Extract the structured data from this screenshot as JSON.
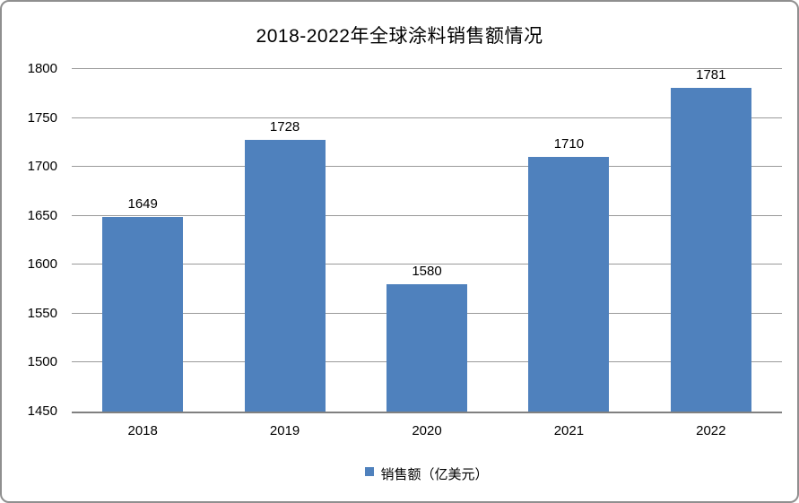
{
  "chart_data": {
    "type": "bar",
    "title": "2018-2022年全球涂料销售额情况",
    "categories": [
      "2018",
      "2019",
      "2020",
      "2021",
      "2022"
    ],
    "series": [
      {
        "name": "销售额（亿美元）",
        "color": "#4F81BD",
        "values": [
          1649,
          1728,
          1580,
          1710,
          1781
        ]
      }
    ],
    "data_labels": [
      1649,
      1728,
      1580,
      1710,
      1781
    ],
    "ylim": [
      1450,
      1800
    ],
    "yticks": [
      1450,
      1500,
      1550,
      1600,
      1650,
      1700,
      1750,
      1800
    ],
    "xlabel": "",
    "ylabel": "",
    "grid": true,
    "legend_position": "bottom"
  },
  "colors": {
    "bar": "#4F81BD",
    "gridline": "#9a9a9a",
    "axis_line": "#808080",
    "text": "#000000",
    "frame_border": "#8f8f8f",
    "background": "#ffffff"
  }
}
